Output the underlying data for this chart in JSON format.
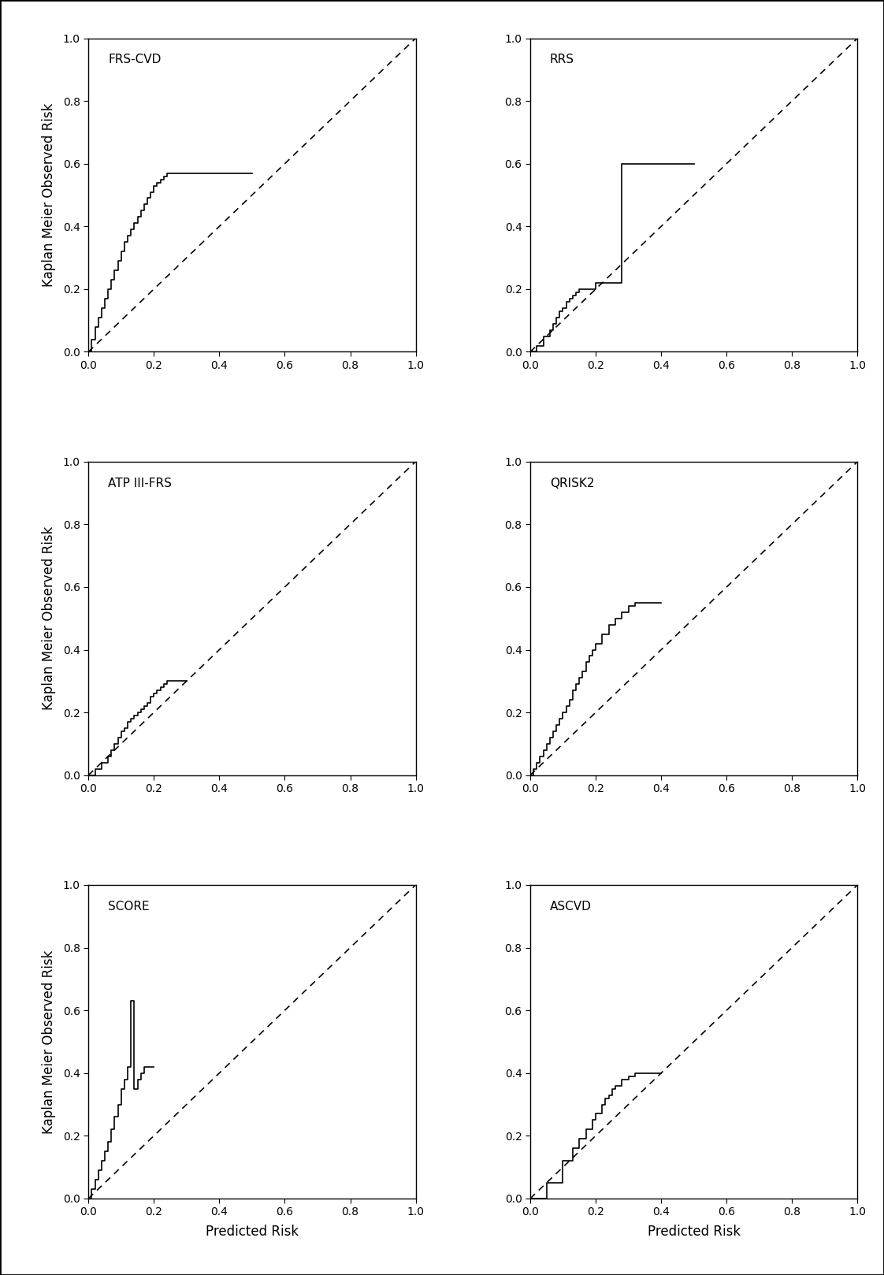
{
  "panels": [
    {
      "label": "FRS-CVD",
      "curve_x": [
        0.0,
        0.01,
        0.02,
        0.03,
        0.04,
        0.05,
        0.06,
        0.07,
        0.08,
        0.09,
        0.1,
        0.11,
        0.12,
        0.13,
        0.14,
        0.15,
        0.16,
        0.17,
        0.18,
        0.19,
        0.2,
        0.21,
        0.22,
        0.23,
        0.24,
        0.25,
        0.26,
        0.27,
        0.28,
        0.5
      ],
      "curve_y": [
        0.0,
        0.04,
        0.08,
        0.11,
        0.14,
        0.17,
        0.2,
        0.23,
        0.26,
        0.29,
        0.32,
        0.35,
        0.37,
        0.39,
        0.41,
        0.43,
        0.45,
        0.47,
        0.49,
        0.51,
        0.53,
        0.54,
        0.55,
        0.56,
        0.57,
        0.57,
        0.57,
        0.57,
        0.57,
        0.57
      ]
    },
    {
      "label": "RRS",
      "curve_x": [
        0.0,
        0.02,
        0.04,
        0.06,
        0.07,
        0.08,
        0.09,
        0.1,
        0.11,
        0.12,
        0.13,
        0.14,
        0.15,
        0.2,
        0.25,
        0.28,
        0.3,
        0.35,
        0.5
      ],
      "curve_y": [
        0.0,
        0.02,
        0.05,
        0.07,
        0.09,
        0.11,
        0.13,
        0.14,
        0.16,
        0.17,
        0.18,
        0.19,
        0.2,
        0.22,
        0.22,
        0.6,
        0.6,
        0.6,
        0.6
      ]
    },
    {
      "label": "ATP III-FRS",
      "curve_x": [
        0.0,
        0.02,
        0.04,
        0.06,
        0.07,
        0.08,
        0.09,
        0.1,
        0.11,
        0.12,
        0.13,
        0.14,
        0.15,
        0.16,
        0.17,
        0.18,
        0.19,
        0.2,
        0.21,
        0.22,
        0.23,
        0.24,
        0.25,
        0.3
      ],
      "curve_y": [
        0.0,
        0.02,
        0.04,
        0.06,
        0.08,
        0.1,
        0.12,
        0.14,
        0.15,
        0.17,
        0.18,
        0.19,
        0.2,
        0.21,
        0.22,
        0.23,
        0.25,
        0.26,
        0.27,
        0.28,
        0.29,
        0.3,
        0.3,
        0.3
      ]
    },
    {
      "label": "QRISK2",
      "curve_x": [
        0.0,
        0.01,
        0.02,
        0.03,
        0.04,
        0.05,
        0.06,
        0.07,
        0.08,
        0.09,
        0.1,
        0.11,
        0.12,
        0.13,
        0.14,
        0.15,
        0.16,
        0.17,
        0.18,
        0.19,
        0.2,
        0.22,
        0.24,
        0.26,
        0.28,
        0.3,
        0.32,
        0.34,
        0.36,
        0.4
      ],
      "curve_y": [
        0.0,
        0.02,
        0.04,
        0.06,
        0.08,
        0.1,
        0.12,
        0.14,
        0.16,
        0.18,
        0.2,
        0.22,
        0.24,
        0.27,
        0.29,
        0.31,
        0.33,
        0.36,
        0.38,
        0.4,
        0.42,
        0.45,
        0.48,
        0.5,
        0.52,
        0.54,
        0.55,
        0.55,
        0.55,
        0.55
      ]
    },
    {
      "label": "SCORE",
      "curve_x": [
        0.0,
        0.01,
        0.02,
        0.03,
        0.04,
        0.05,
        0.06,
        0.07,
        0.08,
        0.09,
        0.1,
        0.11,
        0.12,
        0.13,
        0.14,
        0.15,
        0.16,
        0.17,
        0.18,
        0.19,
        0.2
      ],
      "curve_y": [
        0.0,
        0.03,
        0.06,
        0.09,
        0.12,
        0.15,
        0.18,
        0.22,
        0.26,
        0.3,
        0.35,
        0.38,
        0.42,
        0.63,
        0.35,
        0.38,
        0.4,
        0.42,
        0.42,
        0.42,
        0.42
      ]
    },
    {
      "label": "ASCVD",
      "curve_x": [
        0.0,
        0.05,
        0.1,
        0.13,
        0.15,
        0.17,
        0.19,
        0.2,
        0.22,
        0.23,
        0.24,
        0.25,
        0.26,
        0.28,
        0.3,
        0.32,
        0.35,
        0.4
      ],
      "curve_y": [
        0.0,
        0.05,
        0.12,
        0.16,
        0.19,
        0.22,
        0.25,
        0.27,
        0.3,
        0.32,
        0.33,
        0.35,
        0.36,
        0.38,
        0.39,
        0.4,
        0.4,
        0.4
      ]
    }
  ],
  "xlim": [
    0.0,
    1.0
  ],
  "ylim": [
    0.0,
    1.0
  ],
  "xticks": [
    0.0,
    0.2,
    0.4,
    0.6,
    0.8,
    1.0
  ],
  "yticks": [
    0.0,
    0.2,
    0.4,
    0.6,
    0.8,
    1.0
  ],
  "xtick_labels": [
    "0.0",
    "0.2",
    "0.4",
    "0.6",
    "0.8",
    "1.0"
  ],
  "ytick_labels": [
    "0.0",
    "0.2",
    "0.4",
    "0.6",
    "0.8",
    "1.0"
  ],
  "xlabel": "Predicted Risk",
  "ylabel": "Kaplan Meier Observed Risk",
  "line_color": "#000000",
  "diag_color": "#000000",
  "background": "#ffffff",
  "label_fontsize": 12,
  "tick_fontsize": 10,
  "panel_label_fontsize": 11,
  "outer_border_color": "#000000"
}
